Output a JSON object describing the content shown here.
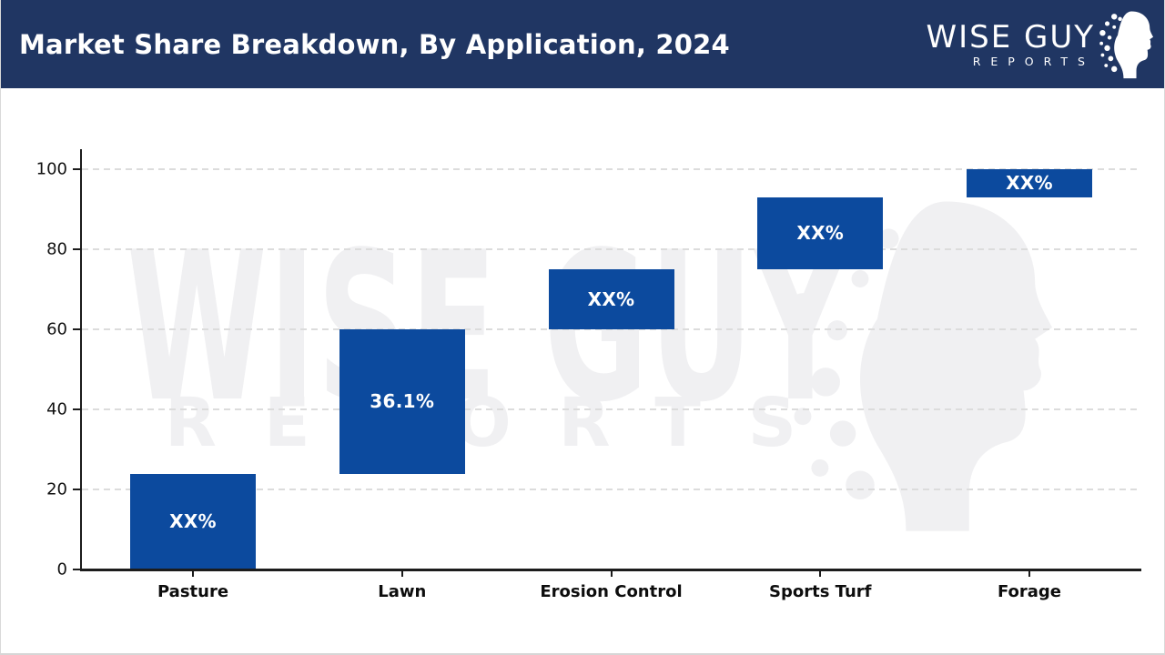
{
  "header": {
    "title": "Market Share Breakdown, By Application, 2024",
    "logo": {
      "line1": "WISE GUY",
      "line2": "REPORTS"
    }
  },
  "watermark": {
    "line1": "WISE GUY",
    "line2": "REPORTS"
  },
  "theme": {
    "header_bg": "#203663",
    "bar_blue": "#0c4a9e",
    "watermark_gray": "#f0f0f2",
    "axis_color": "#1c1c1c",
    "grid_color": "#dcdcdc"
  },
  "chart_data": {
    "type": "bar",
    "subtype": "waterfall",
    "title": "Market Share Breakdown, By Application, 2024",
    "xlabel": "",
    "ylabel": "",
    "categories": [
      "Pasture",
      "Lawn",
      "Erosion Control",
      "Sports Turf",
      "Forage"
    ],
    "segments": [
      {
        "category": "Pasture",
        "start": 0,
        "end": 23.9,
        "value": 23.9,
        "label": "XX%"
      },
      {
        "category": "Lawn",
        "start": 23.9,
        "end": 60,
        "value": 36.1,
        "label": "36.1%"
      },
      {
        "category": "Erosion Control",
        "start": 60,
        "end": 75,
        "value": 15,
        "label": "XX%"
      },
      {
        "category": "Sports Turf",
        "start": 75,
        "end": 93,
        "value": 18,
        "label": "XX%"
      },
      {
        "category": "Forage",
        "start": 93,
        "end": 100,
        "value": 7,
        "label": "XX%"
      }
    ],
    "y_ticks": [
      0,
      20,
      40,
      60,
      80,
      100
    ],
    "ylim": [
      0,
      105
    ],
    "grid": "horizontal-dashed",
    "legend": "none"
  }
}
